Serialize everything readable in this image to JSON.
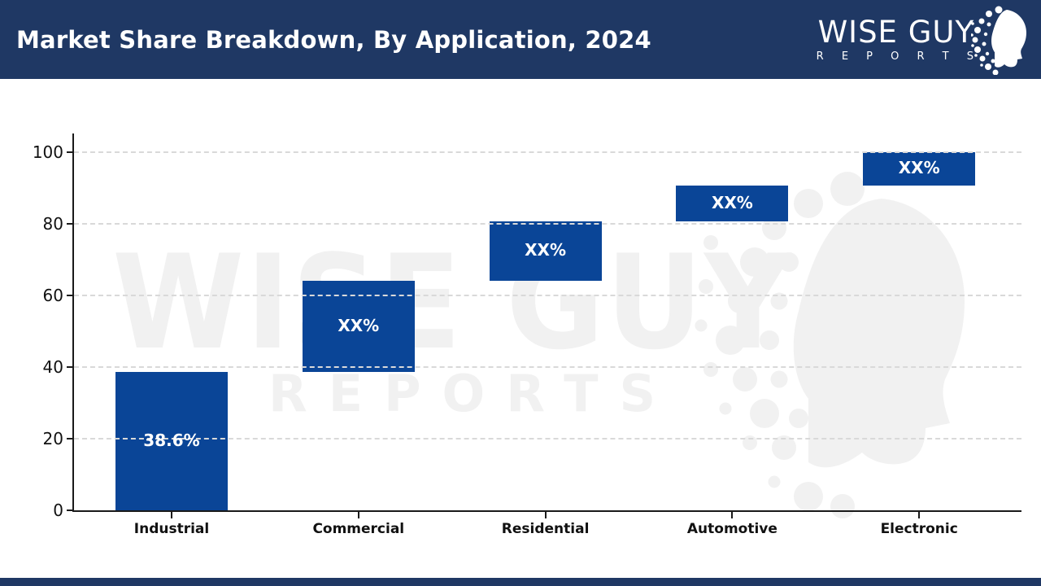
{
  "header": {
    "title": "Market Share Breakdown, By Application, 2024",
    "bg_color": "#1f3864",
    "logo": {
      "line1": "WISE GUY",
      "line2": "R E P O R T S"
    }
  },
  "watermark": {
    "line1": "WISE GUY",
    "line2": "REPORTS"
  },
  "chart_data": {
    "type": "bar",
    "subtype": "waterfall",
    "title": "Market Share Breakdown, By Application, 2024",
    "categories": [
      "Industrial",
      "Commercial",
      "Residential",
      "Automotive",
      "Electronic"
    ],
    "segments": [
      {
        "category": "Industrial",
        "start": 0,
        "end": 38.6,
        "label": "38.6%"
      },
      {
        "category": "Commercial",
        "start": 38.6,
        "end": 64.1,
        "label": "XX%"
      },
      {
        "category": "Residential",
        "start": 64.1,
        "end": 80.7,
        "label": "XX%"
      },
      {
        "category": "Automotive",
        "start": 80.7,
        "end": 90.7,
        "label": "XX%"
      },
      {
        "category": "Electronic",
        "start": 90.7,
        "end": 100,
        "label": "XX%"
      }
    ],
    "y_ticks": [
      0,
      20,
      40,
      60,
      80,
      100
    ],
    "ylim": [
      0,
      105
    ],
    "xlabel": "",
    "ylabel": "",
    "grid": "horizontal dashed, drawn over bars",
    "legend": "none",
    "bar_color": "#0a4597",
    "value_label_color": "#ffffff",
    "grid_color": "#d9d9d9",
    "axis_color": "#1a1a1a"
  }
}
